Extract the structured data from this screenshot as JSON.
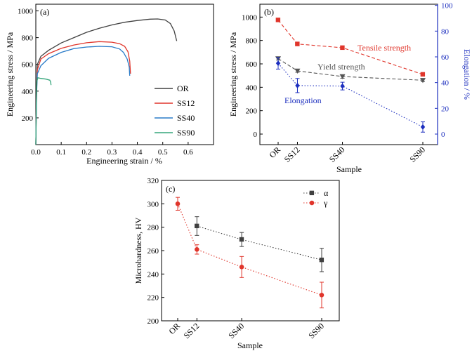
{
  "chart_data": [
    {
      "panel": "(a)",
      "type": "line",
      "xlabel": "Engineering strain / %",
      "ylabel": "Engineering stress / MPa",
      "xlim": [
        0,
        0.7
      ],
      "ylim": [
        0,
        1050
      ],
      "xticks": [
        "0.0",
        "0.1",
        "0.2",
        "0.3",
        "0.4",
        "0.5",
        "0.6"
      ],
      "yticks": [
        "200",
        "400",
        "600",
        "800",
        "1000"
      ],
      "legend_position": "bottom-right",
      "series": [
        {
          "name": "OR",
          "color": "#404040",
          "points": [
            [
              0,
              0
            ],
            [
              0.003,
              430
            ],
            [
              0.006,
              600
            ],
            [
              0.02,
              660
            ],
            [
              0.05,
              705
            ],
            [
              0.1,
              760
            ],
            [
              0.15,
              800
            ],
            [
              0.2,
              840
            ],
            [
              0.25,
              870
            ],
            [
              0.3,
              895
            ],
            [
              0.35,
              915
            ],
            [
              0.4,
              928
            ],
            [
              0.45,
              938
            ],
            [
              0.48,
              940
            ],
            [
              0.51,
              932
            ],
            [
              0.53,
              905
            ],
            [
              0.545,
              850
            ],
            [
              0.555,
              775
            ]
          ]
        },
        {
          "name": "SS12",
          "color": "#e0352b",
          "points": [
            [
              0,
              0
            ],
            [
              0.003,
              400
            ],
            [
              0.006,
              560
            ],
            [
              0.02,
              640
            ],
            [
              0.05,
              680
            ],
            [
              0.1,
              720
            ],
            [
              0.15,
              745
            ],
            [
              0.2,
              762
            ],
            [
              0.25,
              770
            ],
            [
              0.3,
              766
            ],
            [
              0.33,
              755
            ],
            [
              0.35,
              735
            ],
            [
              0.363,
              695
            ],
            [
              0.37,
              625
            ],
            [
              0.373,
              530
            ]
          ]
        },
        {
          "name": "SS40",
          "color": "#2a7bc8",
          "points": [
            [
              0,
              0
            ],
            [
              0.003,
              380
            ],
            [
              0.006,
              530
            ],
            [
              0.02,
              590
            ],
            [
              0.05,
              645
            ],
            [
              0.1,
              690
            ],
            [
              0.15,
              718
            ],
            [
              0.2,
              730
            ],
            [
              0.25,
              735
            ],
            [
              0.3,
              732
            ],
            [
              0.33,
              715
            ],
            [
              0.345,
              690
            ],
            [
              0.36,
              640
            ],
            [
              0.368,
              580
            ],
            [
              0.37,
              515
            ]
          ]
        },
        {
          "name": "SS90",
          "color": "#35a57b",
          "points": [
            [
              0,
              0
            ],
            [
              0.002,
              300
            ],
            [
              0.004,
              470
            ],
            [
              0.008,
              500
            ],
            [
              0.02,
              495
            ],
            [
              0.04,
              490
            ],
            [
              0.055,
              482
            ],
            [
              0.058,
              470
            ],
            [
              0.06,
              445
            ]
          ]
        }
      ]
    },
    {
      "panel": "(b)",
      "type": "line",
      "xlabel": "Sample",
      "ylabel": "Engineering stress / MPa",
      "ylabel_right": "Elongation / %",
      "categories": [
        "OR",
        "SS12",
        "SS40",
        "SS90"
      ],
      "category_positions": [
        0,
        12,
        40,
        90
      ],
      "ylim": [
        -90,
        1110
      ],
      "ylim_right": [
        -8.18,
        100.9
      ],
      "yticks": [
        "0",
        "200",
        "400",
        "600",
        "800",
        "1000"
      ],
      "yticks_right": [
        "0",
        "20",
        "40",
        "60",
        "80",
        "100"
      ],
      "series": [
        {
          "name": "Tensile strength",
          "axis": "left",
          "color": "#e0352b",
          "marker": "square",
          "values": [
            975,
            770,
            738,
            510
          ],
          "err": [
            12,
            15,
            15,
            12
          ]
        },
        {
          "name": "Yield strength",
          "axis": "left",
          "color": "#555555",
          "marker": "triangle-down",
          "values": [
            645,
            540,
            492,
            460
          ],
          "err": [
            12,
            12,
            15,
            12
          ]
        },
        {
          "name": "Elongation",
          "axis": "right",
          "color": "#1d2fbf",
          "marker": "diamond",
          "values": [
            55,
            37.7,
            37.3,
            5.5
          ],
          "err": [
            4.5,
            5.5,
            3,
            4
          ]
        }
      ]
    },
    {
      "panel": "(c)",
      "type": "line",
      "xlabel": "Sample",
      "ylabel": "Microhardness, HV",
      "categories": [
        "OR",
        "SS12",
        "SS40",
        "SS90"
      ],
      "category_positions": [
        0,
        12,
        40,
        90
      ],
      "ylim": [
        200,
        320
      ],
      "yticks": [
        "200",
        "220",
        "240",
        "260",
        "280",
        "300",
        "320"
      ],
      "legend_position": "top-right",
      "series": [
        {
          "name": "α",
          "color": "#404040",
          "marker": "square",
          "values": [
            null,
            281,
            269.5,
            252
          ],
          "err": [
            null,
            8,
            6,
            10
          ]
        },
        {
          "name": "γ",
          "color": "#e0352b",
          "marker": "circle",
          "values": [
            300,
            261,
            246,
            222
          ],
          "err": [
            5.5,
            4,
            9,
            11
          ]
        }
      ]
    }
  ]
}
